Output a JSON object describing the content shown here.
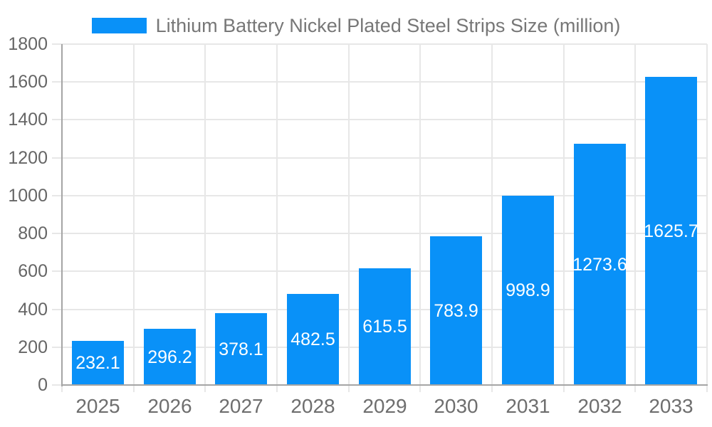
{
  "chart": {
    "legend_label": "Lithium Battery Nickel Plated Steel Strips Size (million)"
  },
  "chart_data": {
    "type": "bar",
    "title": "",
    "series_name": "Lithium Battery Nickel Plated Steel Strips Size (million)",
    "categories": [
      "2025",
      "2026",
      "2027",
      "2028",
      "2029",
      "2030",
      "2031",
      "2032",
      "2033"
    ],
    "values": [
      232.1,
      296.2,
      378.1,
      482.5,
      615.5,
      783.9,
      998.9,
      1273.6,
      1625.7
    ],
    "value_labels": [
      "232.1",
      "296.2",
      "378.1",
      "482.5",
      "615.5",
      "783.9",
      "998.9",
      "1273.6",
      "1625.7"
    ],
    "xlabel": "",
    "ylabel": "",
    "ylim": [
      0,
      1800
    ],
    "yticks": [
      0,
      200,
      400,
      600,
      800,
      1000,
      1200,
      1400,
      1600,
      1800
    ],
    "grid": true,
    "legend_position": "top-center",
    "value_label_position": "inside-center",
    "colors": {
      "bar": "#0991f8",
      "grid": "#e7e7e7",
      "axis": "#a5a5a5",
      "y_tick_label": "#666666",
      "x_tick_label": "#6e6e6e",
      "legend_text": "#777777",
      "value_label": "#ffffff",
      "background": "#ffffff"
    }
  }
}
